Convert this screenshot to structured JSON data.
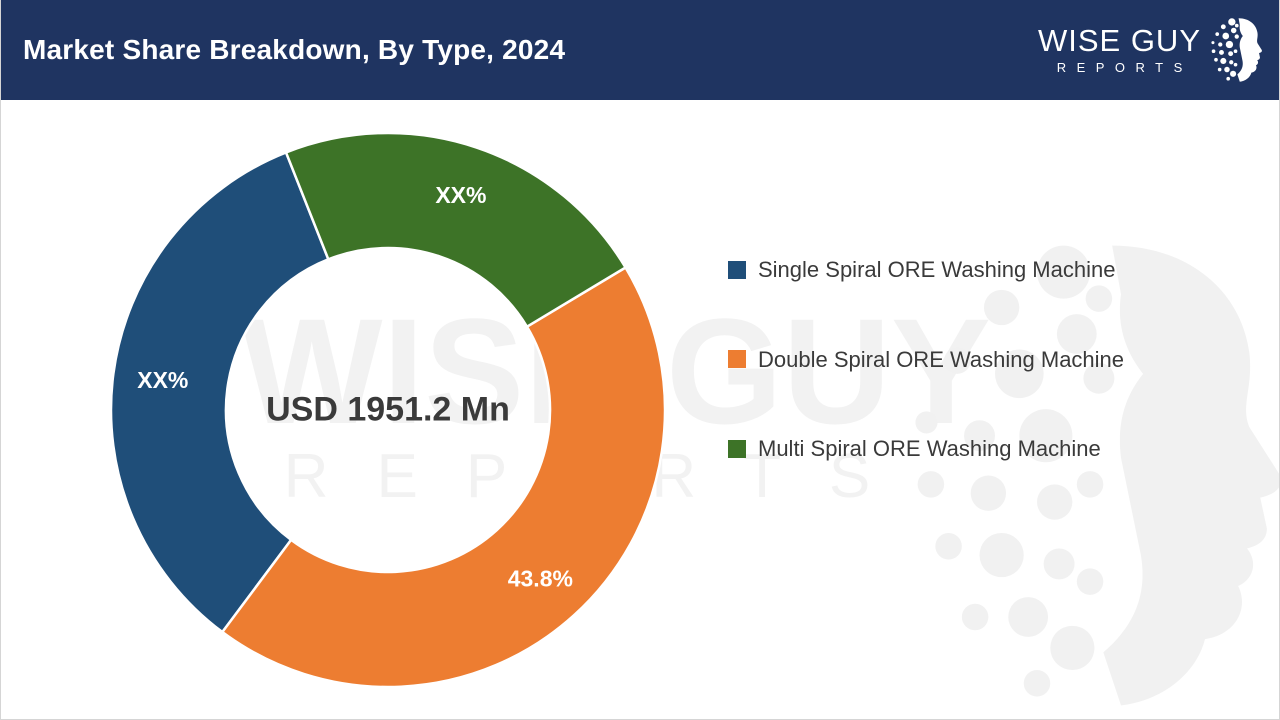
{
  "header": {
    "title": "Market Share Breakdown, By Type, 2024",
    "bg_color": "#1f3461",
    "logo": {
      "line1": "WISE GUY",
      "line2": "REPORTS"
    }
  },
  "chart_data": {
    "type": "pie",
    "subtype": "donut",
    "title": "Market Share Breakdown, By Type, 2024",
    "center_label": "USD 1951.2 Mn",
    "units": "percent",
    "start_angle_deg": 111.6,
    "direction": "counterclockwise",
    "inner_radius_ratio": 0.585,
    "outer_radius_px": 277,
    "legend_position": "right",
    "series": [
      {
        "name": "Single Spiral ORE Washing Machine",
        "value": 33.8,
        "label": "XX%",
        "color": "#1f4e79"
      },
      {
        "name": "Double Spiral ORE Washing Machine",
        "value": 43.8,
        "label": "43.8%",
        "color": "#ed7d31"
      },
      {
        "name": "Multi Spiral ORE Washing Machine",
        "value": 22.4,
        "label": "XX%",
        "color": "#3d7327"
      }
    ]
  },
  "watermark": {
    "line1": "WISE GUY",
    "line2": "REPORTS"
  },
  "colors": {
    "header_bg": "#1f3461",
    "text_dark": "#3a3a3a",
    "border": "#d5d5d5"
  }
}
